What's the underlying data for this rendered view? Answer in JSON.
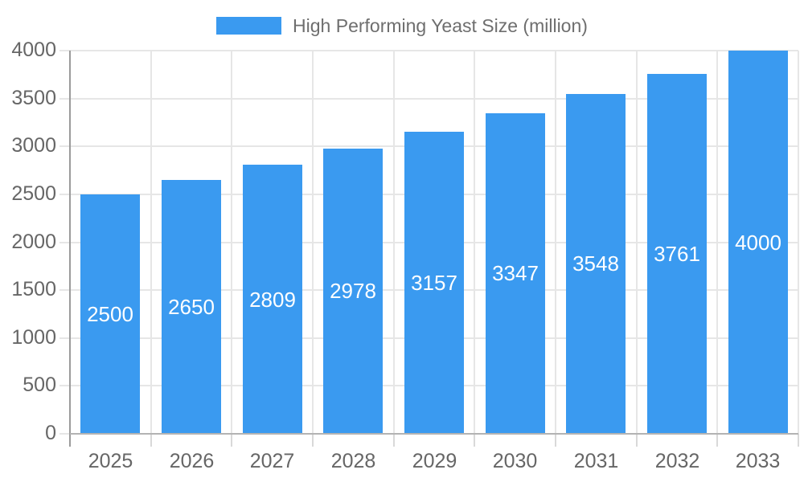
{
  "chart_data": {
    "type": "bar",
    "title": "High Performing Yeast Size (million)",
    "categories": [
      "2025",
      "2026",
      "2027",
      "2028",
      "2029",
      "2030",
      "2031",
      "2032",
      "2033"
    ],
    "values": [
      2500,
      2650,
      2809,
      2978,
      3157,
      3347,
      3548,
      3761,
      4000
    ],
    "xlabel": "",
    "ylabel": "",
    "ylim": [
      0,
      4000
    ],
    "ytick_step": 500,
    "grid": true,
    "legend_position": "top",
    "value_labels": "inside-middle"
  },
  "colors": {
    "bar": "#3a9af0",
    "grid_line": "#e6e6e6",
    "axis_line": "#9b9b9b",
    "baseline": "#b3b3b3",
    "tick_line": "#d9d9d9",
    "axis_text": "#666666",
    "legend_text": "#6e6e6e",
    "value_text": "#ffffff",
    "background": "#ffffff"
  }
}
